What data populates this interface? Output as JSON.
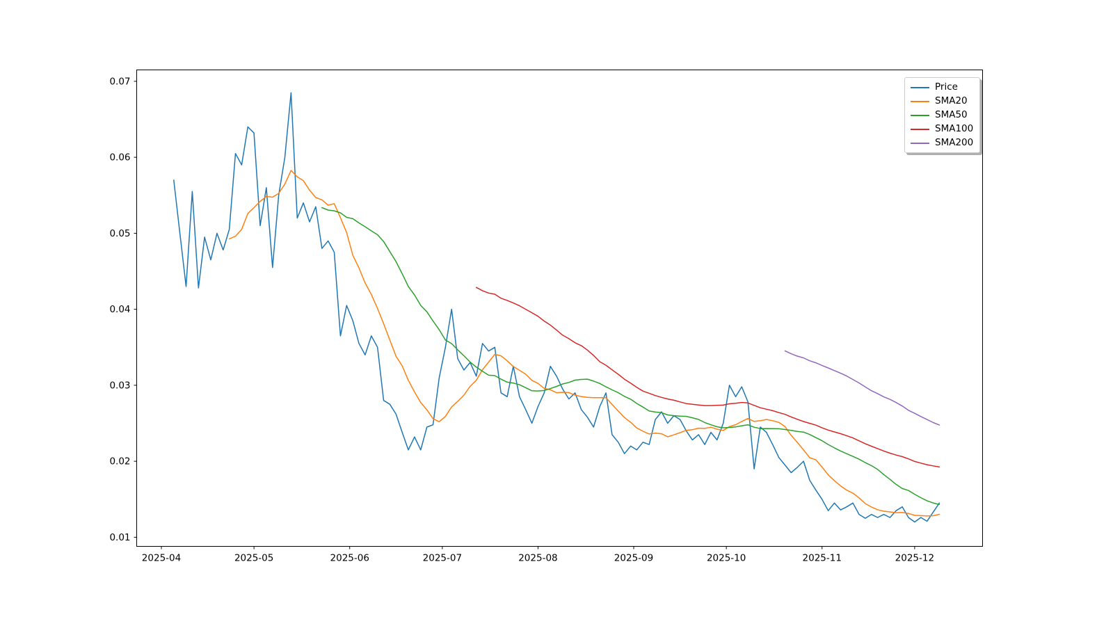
{
  "figure": {
    "background": "#ffffff",
    "x_tick_labels": [
      "2025-04",
      "2025-05",
      "2025-06",
      "2025-07",
      "2025-08",
      "2025-09",
      "2025-10",
      "2025-11",
      "2025-12"
    ],
    "y_tick_labels": [
      "0.01",
      "0.02",
      "0.03",
      "0.04",
      "0.05",
      "0.06",
      "0.07"
    ]
  },
  "legend": {
    "position": "upper right",
    "entries": [
      {
        "label": "Price",
        "color": "#1f77b4"
      },
      {
        "label": "SMA20",
        "color": "#ff7f0e"
      },
      {
        "label": "SMA50",
        "color": "#2ca02c"
      },
      {
        "label": "SMA100",
        "color": "#d62728"
      },
      {
        "label": "SMA200",
        "color": "#9467bd"
      }
    ]
  },
  "chart_data": {
    "type": "line",
    "title": "",
    "xlabel": "",
    "ylabel": "",
    "grid": false,
    "legend_position": "upper right",
    "x_range": [
      "2025-03-24",
      "2025-12-23"
    ],
    "ylim": [
      0.0088,
      0.0715
    ],
    "sample_interval_days": 2,
    "dates": [
      "2025-04-05",
      "2025-04-07",
      "2025-04-09",
      "2025-04-11",
      "2025-04-13",
      "2025-04-15",
      "2025-04-17",
      "2025-04-19",
      "2025-04-21",
      "2025-04-23",
      "2025-04-25",
      "2025-04-27",
      "2025-04-29",
      "2025-05-01",
      "2025-05-03",
      "2025-05-05",
      "2025-05-07",
      "2025-05-09",
      "2025-05-11",
      "2025-05-13",
      "2025-05-15",
      "2025-05-17",
      "2025-05-19",
      "2025-05-21",
      "2025-05-23",
      "2025-05-25",
      "2025-05-27",
      "2025-05-29",
      "2025-05-31",
      "2025-06-02",
      "2025-06-04",
      "2025-06-06",
      "2025-06-08",
      "2025-06-10",
      "2025-06-12",
      "2025-06-14",
      "2025-06-16",
      "2025-06-18",
      "2025-06-20",
      "2025-06-22",
      "2025-06-24",
      "2025-06-26",
      "2025-06-28",
      "2025-06-30",
      "2025-07-02",
      "2025-07-04",
      "2025-07-06",
      "2025-07-08",
      "2025-07-10",
      "2025-07-12",
      "2025-07-14",
      "2025-07-16",
      "2025-07-18",
      "2025-07-20",
      "2025-07-22",
      "2025-07-24",
      "2025-07-26",
      "2025-07-28",
      "2025-07-30",
      "2025-08-01",
      "2025-08-03",
      "2025-08-05",
      "2025-08-07",
      "2025-08-09",
      "2025-08-11",
      "2025-08-13",
      "2025-08-15",
      "2025-08-17",
      "2025-08-19",
      "2025-08-21",
      "2025-08-23",
      "2025-08-25",
      "2025-08-27",
      "2025-08-29",
      "2025-08-31",
      "2025-09-02",
      "2025-09-04",
      "2025-09-06",
      "2025-09-08",
      "2025-09-10",
      "2025-09-12",
      "2025-09-14",
      "2025-09-16",
      "2025-09-18",
      "2025-09-20",
      "2025-09-22",
      "2025-09-24",
      "2025-09-26",
      "2025-09-28",
      "2025-09-30",
      "2025-10-02",
      "2025-10-04",
      "2025-10-06",
      "2025-10-08",
      "2025-10-10",
      "2025-10-12",
      "2025-10-14",
      "2025-10-16",
      "2025-10-18",
      "2025-10-20",
      "2025-10-22",
      "2025-10-24",
      "2025-10-26",
      "2025-10-28",
      "2025-10-30",
      "2025-11-01",
      "2025-11-03",
      "2025-11-05",
      "2025-11-07",
      "2025-11-09",
      "2025-11-11",
      "2025-11-13",
      "2025-11-15",
      "2025-11-17",
      "2025-11-19",
      "2025-11-21",
      "2025-11-23",
      "2025-11-25",
      "2025-11-27",
      "2025-11-29",
      "2025-12-01",
      "2025-12-03",
      "2025-12-05",
      "2025-12-07",
      "2025-12-09"
    ],
    "series": [
      {
        "name": "Price",
        "color": "#1f77b4",
        "values": [
          0.057,
          0.05,
          0.043,
          0.0555,
          0.0428,
          0.0495,
          0.0465,
          0.05,
          0.0478,
          0.0505,
          0.0605,
          0.059,
          0.064,
          0.0632,
          0.051,
          0.056,
          0.0455,
          0.055,
          0.06,
          0.0685,
          0.052,
          0.054,
          0.0515,
          0.0535,
          0.048,
          0.049,
          0.0475,
          0.0365,
          0.0405,
          0.0385,
          0.0355,
          0.034,
          0.0365,
          0.035,
          0.028,
          0.0275,
          0.0262,
          0.0238,
          0.0215,
          0.0232,
          0.0215,
          0.0245,
          0.0248,
          0.031,
          0.035,
          0.04,
          0.0335,
          0.032,
          0.033,
          0.0312,
          0.0355,
          0.0345,
          0.035,
          0.029,
          0.0285,
          0.0325,
          0.0285,
          0.0268,
          0.025,
          0.0272,
          0.029,
          0.0325,
          0.0312,
          0.0295,
          0.0282,
          0.029,
          0.0268,
          0.0258,
          0.0245,
          0.0272,
          0.029,
          0.0235,
          0.0225,
          0.021,
          0.022,
          0.0215,
          0.0225,
          0.0222,
          0.0255,
          0.0265,
          0.025,
          0.026,
          0.0255,
          0.024,
          0.0228,
          0.0235,
          0.0222,
          0.0238,
          0.0228,
          0.025,
          0.03,
          0.0285,
          0.0298,
          0.0278,
          0.019,
          0.0245,
          0.0238,
          0.0222,
          0.0205,
          0.0195,
          0.0185,
          0.0192,
          0.02,
          0.0175,
          0.0162,
          0.015,
          0.0135,
          0.0145,
          0.0136,
          0.014,
          0.0145,
          0.013,
          0.0125,
          0.013,
          0.0126,
          0.013,
          0.0126,
          0.0135,
          0.014,
          0.0126,
          0.012,
          0.0126,
          0.0121,
          0.0133,
          0.0145
        ]
      },
      {
        "name": "SMA20",
        "color": "#ff7f0e",
        "window_days": 20,
        "derived": "rolling mean of Price"
      },
      {
        "name": "SMA50",
        "color": "#2ca02c",
        "window_days": 50,
        "derived": "rolling mean of Price"
      },
      {
        "name": "SMA100",
        "color": "#d62728",
        "window_days": 100,
        "derived": "rolling mean of Price"
      },
      {
        "name": "SMA200",
        "color": "#9467bd",
        "window_days": 200,
        "derived": "rolling mean of Price"
      }
    ]
  }
}
